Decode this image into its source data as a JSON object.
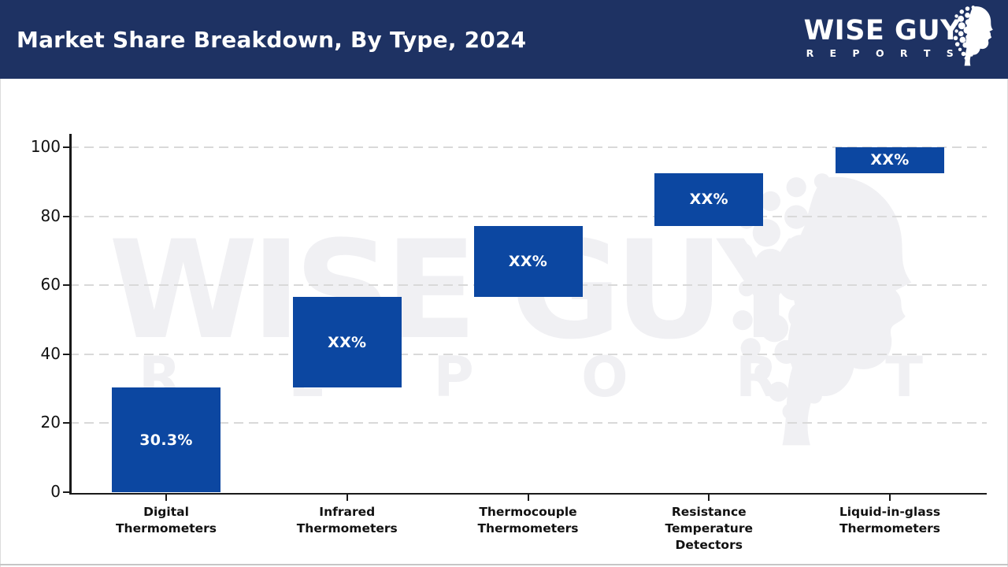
{
  "header": {
    "title": "Market Share Breakdown, By Type, 2024",
    "logo": {
      "wordmark": "WISE GUY",
      "subtitle": "R E P O R T S"
    }
  },
  "watermark": {
    "wordmark": "WISE GUY",
    "subtitle": "R E P O R T S"
  },
  "chart_data": {
    "type": "bar",
    "subtype": "stacked-waterfall",
    "title": "Market Share Breakdown, By Type, 2024",
    "categories": [
      "Digital\nThermometers",
      "Infrared\nThermometers",
      "Thermocouple\nThermometers",
      "Resistance\nTemperature\nDetectors",
      "Liquid-in-glass\nThermometers"
    ],
    "segments": [
      {
        "category": "Digital Thermometers",
        "start": 0,
        "end": 30.3,
        "value": 30.3,
        "label": "30.3%"
      },
      {
        "category": "Infrared Thermometers",
        "start": 30.3,
        "end": 56.6,
        "value": 26.3,
        "label": "XX%"
      },
      {
        "category": "Thermocouple Thermometers",
        "start": 56.6,
        "end": 77.2,
        "value": 20.6,
        "label": "XX%"
      },
      {
        "category": "Resistance Temperature Detectors",
        "start": 77.2,
        "end": 92.5,
        "value": 15.3,
        "label": "XX%"
      },
      {
        "category": "Liquid-in-glass Thermometers",
        "start": 92.5,
        "end": 100,
        "value": 7.5,
        "label": "XX%"
      }
    ],
    "xlabel": "",
    "ylabel": "",
    "ylim": [
      0,
      100
    ],
    "yticks": [
      0,
      20,
      40,
      60,
      80,
      100
    ],
    "grid": "horizontal-dashed",
    "legend": "none"
  },
  "colors": {
    "header_bg": "#1e3263",
    "bar": "#0c47a1",
    "bar_label": "#ffffff",
    "grid": "#d9d9d9",
    "axis": "#1a1a1a",
    "watermark": "#f0f0f3",
    "page_bg": "#ffffff"
  }
}
